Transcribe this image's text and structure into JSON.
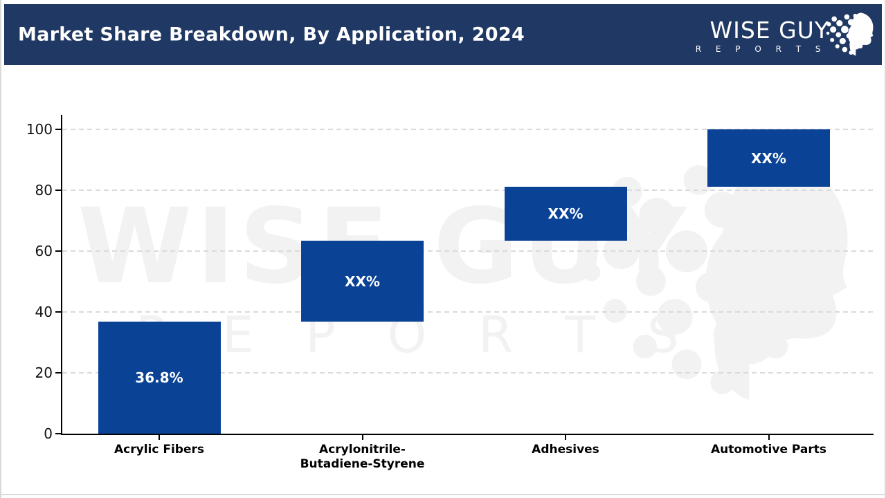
{
  "header": {
    "title": "Market Share Breakdown, By Application, 2024",
    "bg_color": "#203864",
    "logo": {
      "line1": "WISE GUY",
      "line2": "R E P O R T S"
    }
  },
  "watermark": {
    "line1": "WISE GUY",
    "line2": "R E P O R T S"
  },
  "chart_data": {
    "type": "bar",
    "subtype": "waterfall-segments",
    "title": "Market Share Breakdown, By Application, 2024",
    "categories": [
      "Acrylic Fibers",
      "Acrylonitrile-\nButadiene-Styrene",
      "Adhesives",
      "Automotive Parts"
    ],
    "segments": [
      {
        "category": "Acrylic Fibers",
        "start": 0,
        "end": 36.8,
        "label": "36.8%"
      },
      {
        "category": "Acrylonitrile-Butadiene-Styrene",
        "start": 36.8,
        "end": 63.4,
        "label": "XX%"
      },
      {
        "category": "Adhesives",
        "start": 63.4,
        "end": 81.1,
        "label": "XX%"
      },
      {
        "category": "Automotive Parts",
        "start": 81.1,
        "end": 100,
        "label": "XX%"
      }
    ],
    "yticks": [
      0,
      20,
      40,
      60,
      80,
      100
    ],
    "ylim": [
      0,
      105
    ],
    "xlabel": "",
    "ylabel": "",
    "grid": "dashed-horizontal",
    "legend": "none",
    "bar_color": "#0a4296",
    "bar_label_color": "#ffffff"
  }
}
